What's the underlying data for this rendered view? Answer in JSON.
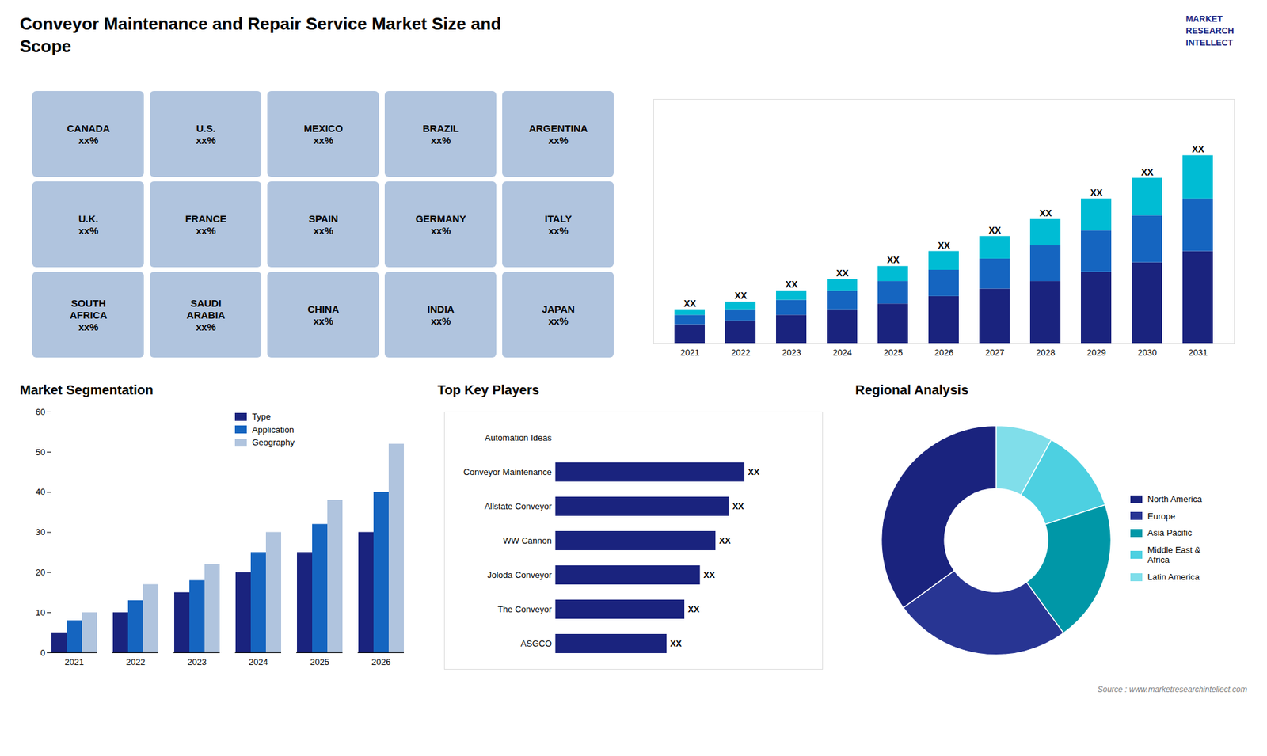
{
  "title": "Conveyor Maintenance and Repair Service Market Size and\nScope",
  "annotations": [
    "MARKET\nRESEARCH\nINTELLECT",
    "Source : www.marketresearchintellect.com"
  ],
  "chart_data": [
    {
      "type": "map",
      "annotations": [
        "CANADA\nxx%",
        "U.S.\nxx%",
        "MEXICO\nxx%",
        "BRAZIL\nxx%",
        "ARGENTINA\nxx%",
        "U.K.\nxx%",
        "FRANCE\nxx%",
        "SPAIN\nxx%",
        "GERMANY\nxx%",
        "ITALY\nxx%",
        "SOUTH\nAFRICA\nxx%",
        "SAUDI\nARABIA\nxx%",
        "CHINA\nxx%",
        "INDIA\nxx%",
        "JAPAN\nxx%"
      ],
      "color": "#b0c4de"
    },
    {
      "type": "bar",
      "stacked": true,
      "categories": [
        "2021",
        "2022",
        "2023",
        "2024",
        "2025",
        "2026",
        "2027",
        "2028",
        "2029",
        "2030",
        "2031"
      ],
      "series": [
        {
          "color": "#1a237e",
          "values": [
            1,
            1.2,
            1.5,
            1.8,
            2.1,
            2.5,
            2.9,
            3.3,
            3.8,
            4.3,
            4.9
          ]
        },
        {
          "color": "#1565c0",
          "values": [
            0.5,
            0.6,
            0.8,
            1.0,
            1.2,
            1.4,
            1.6,
            1.9,
            2.2,
            2.5,
            2.8
          ]
        },
        {
          "color": "#00bcd4",
          "values": [
            0.3,
            0.4,
            0.5,
            0.6,
            0.8,
            1.0,
            1.2,
            1.4,
            1.7,
            2.0,
            2.3
          ]
        }
      ],
      "ylim": [
        0,
        13
      ],
      "tick_labels": "x",
      "grid": false,
      "data_labels": true,
      "value_labels": [
        "XX",
        "XX",
        "XX",
        "XX",
        "XX",
        "XX",
        "XX",
        "XX",
        "XX",
        "XX",
        "XX"
      ]
    },
    {
      "type": "bar",
      "title": "Market Segmentation",
      "categories": [
        "2021",
        "2022",
        "2023",
        "2024",
        "2025",
        "2026"
      ],
      "series": [
        {
          "name": "Type",
          "color": "#1a237e",
          "values": [
            5,
            10,
            15,
            20,
            25,
            30
          ]
        },
        {
          "name": "Application",
          "color": "#1565c0",
          "values": [
            8,
            13,
            18,
            25,
            32,
            40
          ]
        },
        {
          "name": "Geography",
          "color": "#b0c4de",
          "values": [
            10,
            17,
            22,
            30,
            38,
            52
          ]
        }
      ],
      "ylim": [
        0,
        60
      ],
      "yticks": [
        0,
        10,
        20,
        30,
        40,
        50,
        60
      ],
      "legend": "upper right",
      "grid": false
    },
    {
      "type": "bar",
      "orientation": "horizontal",
      "title": "Top Key Players",
      "categories": [
        "Automation Ideas",
        "Conveyor Maintenance",
        "Allstate Conveyor",
        "WW Cannon",
        "Joloda Conveyor",
        "The Conveyor",
        "ASGCO"
      ],
      "values": [
        0,
        8.5,
        7.8,
        7.2,
        6.5,
        5.8,
        5.0
      ],
      "color": "#1a237e",
      "xlim": [
        -5,
        12
      ],
      "tick_labels": "y",
      "grid": false,
      "data_labels": true,
      "value_labels": [
        null,
        "XX",
        "XX",
        "XX",
        "XX",
        "XX",
        "XX"
      ]
    },
    {
      "type": "donut",
      "title": "Regional Analysis",
      "categories": [
        "Latin America",
        "Middle East &\nAfrica",
        "Asia Pacific",
        "Europe",
        "North America"
      ],
      "values": [
        8,
        12,
        20,
        25,
        35
      ],
      "colors": [
        "#80deea",
        "#4dd0e1",
        "#0097a7",
        "#283593",
        "#1a237e"
      ],
      "legend": "right"
    }
  ]
}
